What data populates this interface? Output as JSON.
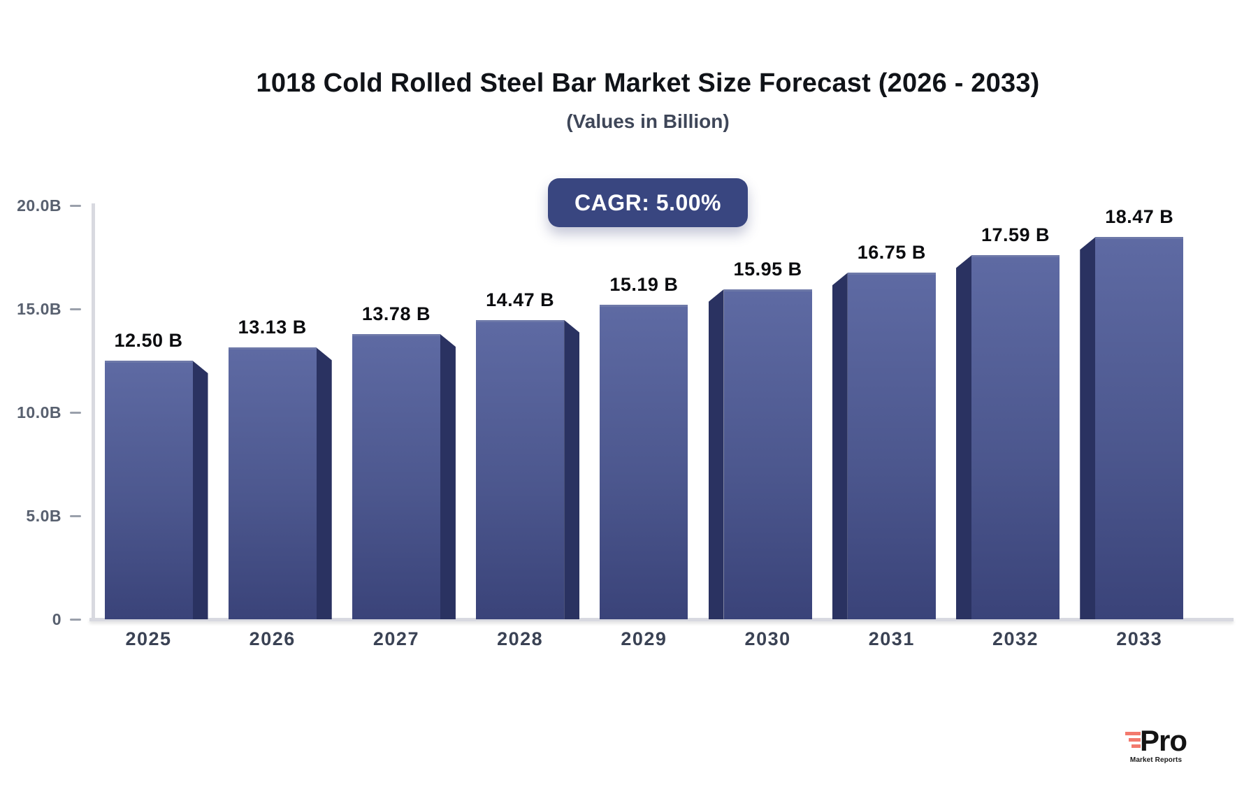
{
  "header": {
    "title": "1018 Cold Rolled Steel Bar Market Size Forecast (2026 - 2033)",
    "subtitle": "(Values in Billion)",
    "cagr_badge": "CAGR: 5.00%"
  },
  "chart_data": {
    "type": "bar",
    "title": "1018 Cold Rolled Steel Bar Market Size Forecast (2026 - 2033)",
    "subtitle": "(Values in Billion)",
    "categories": [
      "2025",
      "2026",
      "2027",
      "2028",
      "2029",
      "2030",
      "2031",
      "2032",
      "2033"
    ],
    "values": [
      12.5,
      13.13,
      13.78,
      14.47,
      15.19,
      15.95,
      16.75,
      17.59,
      18.47
    ],
    "value_labels": [
      "12.50 B",
      "13.13 B",
      "13.78 B",
      "14.47 B",
      "15.19 B",
      "15.95 B",
      "16.75 B",
      "17.59 B",
      "18.47 B"
    ],
    "cagr_percent": "5.00%",
    "xlabel": "",
    "ylabel": "",
    "ylim": [
      0,
      20
    ],
    "y_ticks": [
      {
        "label": "20.0B",
        "value": 20
      },
      {
        "label": "15.0B",
        "value": 15
      },
      {
        "label": "10.0B",
        "value": 10
      },
      {
        "label": "5.0B",
        "value": 5
      },
      {
        "label": "0",
        "value": 0
      }
    ],
    "grid": false,
    "legend": false,
    "bar_style": "3d-perspective"
  },
  "branding": {
    "logo_text": "Pro",
    "logo_subtext": "Market Reports"
  },
  "colors": {
    "badge_bg": "#394680",
    "bar_top": "#5e6aa3",
    "bar_bottom": "#3a4379",
    "bar_side": "#2a3261",
    "bar_edge": "#6d78a8",
    "axis_line": "#d8d9e0",
    "brand_red": "#f3796d",
    "title_text": "#101318",
    "subtitle_text": "#3e4658"
  }
}
